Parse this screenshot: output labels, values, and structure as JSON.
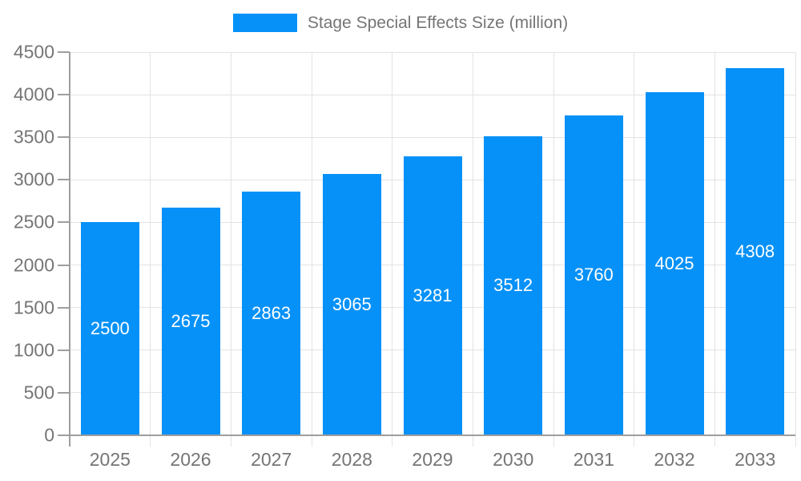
{
  "legend": {
    "label": "Stage Special Effects Size (million)"
  },
  "chart_data": {
    "type": "bar",
    "title": "Stage Special Effects Size (million)",
    "categories": [
      "2025",
      "2026",
      "2027",
      "2028",
      "2029",
      "2030",
      "2031",
      "2032",
      "2033"
    ],
    "values": [
      2500,
      2675,
      2863,
      3065,
      3281,
      3512,
      3760,
      4025,
      4308
    ],
    "xlabel": "",
    "ylabel": "",
    "ylim": [
      0,
      4500
    ],
    "ytick_step": 500,
    "yticks": [
      0,
      500,
      1000,
      1500,
      2000,
      2500,
      3000,
      3500,
      4000,
      4500
    ],
    "grid": true,
    "legend_position": "top-center",
    "value_labels": "inside-center",
    "colors": {
      "bar": "#0691f8",
      "grid": "#e3e3e3",
      "axis": "#9e9e9e",
      "tick_label": "#757575",
      "value_label": "#ffffff",
      "legend_text": "#757575"
    }
  }
}
